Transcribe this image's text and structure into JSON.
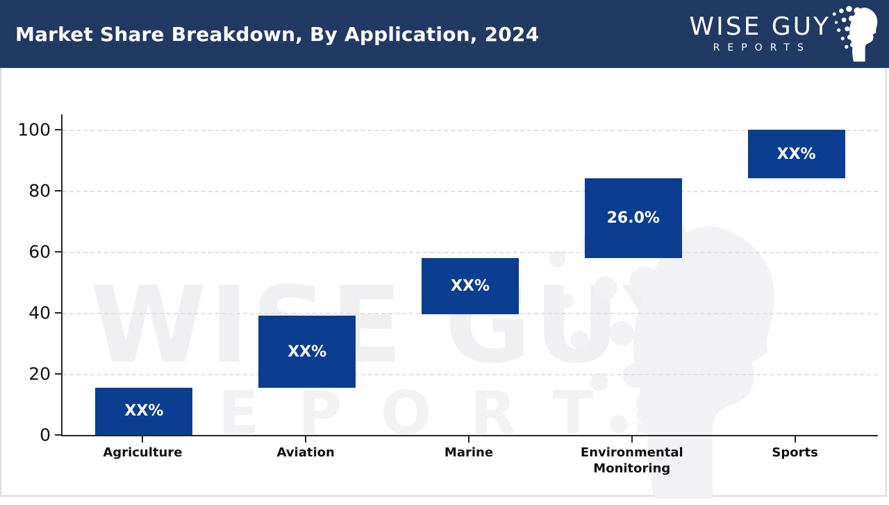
{
  "header": {
    "title": "Market Share Breakdown, By Application, 2024",
    "bg_color": "#203a64",
    "logo": {
      "line1": "WISE GUY",
      "line2": "REPORTS"
    }
  },
  "watermark": {
    "line1": "WISE GUY",
    "line2": "REPORTS"
  },
  "chart_data": {
    "type": "bar",
    "variant": "waterfall-floating-bars",
    "title": "Market Share Breakdown, By Application, 2024",
    "categories": [
      "Agriculture",
      "Aviation",
      "Marine",
      "Environmental Monitoring",
      "Sports"
    ],
    "segments": [
      {
        "category": "Agriculture",
        "start": 0,
        "end": 15.5,
        "label": "XX%"
      },
      {
        "category": "Aviation",
        "start": 15.5,
        "end": 39.0,
        "label": "XX%"
      },
      {
        "category": "Marine",
        "start": 39.5,
        "end": 58.0,
        "label": "XX%"
      },
      {
        "category": "Environmental Monitoring",
        "start": 58.0,
        "end": 84.0,
        "label": "26.0%"
      },
      {
        "category": "Sports",
        "start": 84.0,
        "end": 100.0,
        "label": "XX%"
      }
    ],
    "yticks": [
      0,
      20,
      40,
      60,
      80,
      100
    ],
    "ylim": [
      0,
      105
    ],
    "xlabel": "",
    "ylabel": "",
    "bar_color": "#0b3d91",
    "bar_label_color": "#ffffff",
    "grid": "horizontal-dashed",
    "legend": false
  }
}
